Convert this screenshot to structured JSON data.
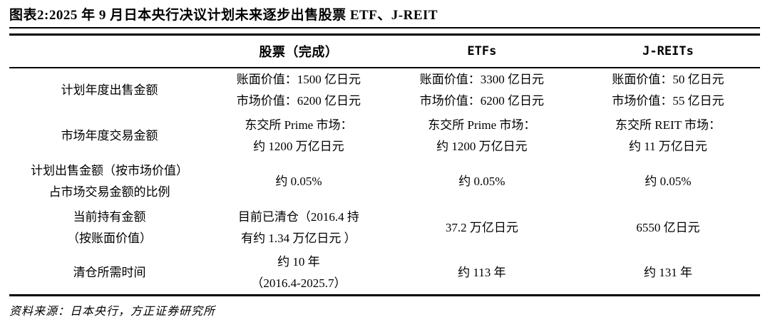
{
  "title": "图表2:2025 年 9 月日本央行决议计划未来逐步出售股票 ETF、J-REIT",
  "colors": {
    "text": "#000000",
    "background": "#ffffff",
    "rule": "#000000"
  },
  "table": {
    "headers": {
      "row_label": "",
      "stock": "股票（完成）",
      "etf": "ETFs",
      "jreit": "J-REITs"
    },
    "rows": [
      {
        "label": [
          "计划年度出售金额"
        ],
        "stock": [
          "账面价值：1500 亿日元",
          "市场价值：6200 亿日元"
        ],
        "etf": [
          "账面价值：3300 亿日元",
          "市场价值：6200 亿日元"
        ],
        "jreit": [
          "账面价值：50 亿日元",
          "市场价值：55 亿日元"
        ]
      },
      {
        "label": [
          "市场年度交易金额"
        ],
        "stock": [
          "东交所 Prime 市场：",
          "约 1200 万亿日元"
        ],
        "etf": [
          "东交所 Prime 市场：",
          "约 1200 万亿日元"
        ],
        "jreit": [
          "东交所 REIT 市场：",
          "约 11 万亿日元"
        ]
      },
      {
        "label": [
          "计划出售金额（按市场价值）",
          "占市场交易金额的比例"
        ],
        "stock": [
          "约 0.05%"
        ],
        "etf": [
          "约 0.05%"
        ],
        "jreit": [
          "约 0.05%"
        ]
      },
      {
        "label": [
          "当前持有金额",
          "（按账面价值）"
        ],
        "stock": [
          "目前已清仓（2016.4 持",
          "有约 1.34 万亿日元 ）"
        ],
        "etf": [
          "37.2 万亿日元"
        ],
        "jreit": [
          "6550 亿日元"
        ]
      },
      {
        "label": [
          "清仓所需时间"
        ],
        "stock": [
          "约 10 年",
          "（2016.4-2025.7）"
        ],
        "etf": [
          "约 113 年"
        ],
        "jreit": [
          "约 131 年"
        ]
      }
    ]
  },
  "source": "资料来源：日本央行，方正证券研究所"
}
